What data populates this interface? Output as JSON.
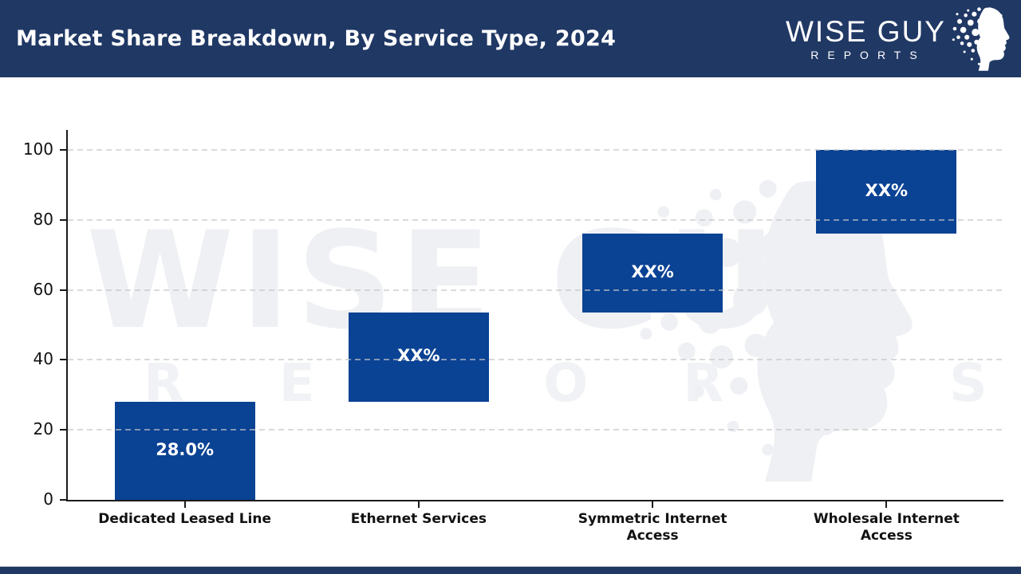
{
  "header": {
    "title": "Market Share Breakdown, By Service Type, 2024",
    "bg_color": "#203864",
    "logo": {
      "line1": "WISE GUY",
      "line2": "REPORTS"
    }
  },
  "watermark": {
    "line1": "WISE GUY",
    "line2": "R E P O R T S"
  },
  "chart_data": {
    "type": "bar",
    "subtype": "waterfall",
    "title": "Market Share Breakdown, By Service Type, 2024",
    "categories": [
      "Dedicated Leased Line",
      "Ethernet Services",
      "Symmetric Internet Access",
      "Wholesale Internet Access"
    ],
    "bars": [
      {
        "category": "Dedicated Leased Line",
        "start": 0,
        "end": 28,
        "label": "28.0%"
      },
      {
        "category": "Ethernet Services",
        "start": 28,
        "end": 53.5,
        "label": "XX%"
      },
      {
        "category": "Symmetric Internet Access",
        "start": 53.5,
        "end": 76,
        "label": "XX%"
      },
      {
        "category": "Wholesale Internet Access",
        "start": 76,
        "end": 100,
        "label": "XX%"
      }
    ],
    "xlabel": "",
    "ylabel": "",
    "ylim": [
      0,
      100
    ],
    "yticks": [
      0,
      20,
      40,
      60,
      80,
      100
    ],
    "grid": "horizontal-dashed",
    "legend": "none",
    "bar_color": "#0a4294",
    "grid_color": "#c6c6c6",
    "axis_color": "#1a1a1a"
  }
}
